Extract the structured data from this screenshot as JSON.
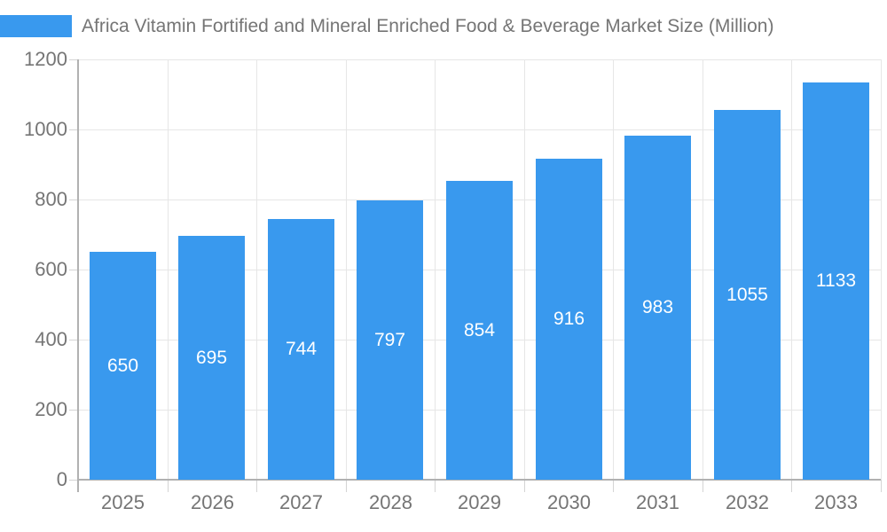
{
  "legend": {
    "series_label": "Africa Vitamin Fortified and Mineral Enriched Food & Beverage Market Size (Million)",
    "swatch_color": "#3999EE"
  },
  "chart_data": {
    "type": "bar",
    "title": "Africa Vitamin Fortified and Mineral Enriched Food & Beverage Market Size (Million)",
    "categories": [
      "2025",
      "2026",
      "2027",
      "2028",
      "2029",
      "2030",
      "2031",
      "2032",
      "2033"
    ],
    "values": [
      650,
      695,
      744,
      797,
      854,
      916,
      983,
      1055,
      1133
    ],
    "xlabel": "",
    "ylabel": "",
    "ylim": [
      0,
      1200
    ],
    "yticks": [
      0,
      200,
      400,
      600,
      800,
      1000,
      1200
    ],
    "grid": true,
    "legend_position": "top-left",
    "value_labels": "centered-inside-bars",
    "colors": {
      "bar": "#3999EE",
      "value_label_text": "#ffffff",
      "axis_text": "#757575",
      "grid_line": "#e6e6e6",
      "axis_line": "#b1b1b1",
      "tick_line": "#d4d4d4"
    }
  }
}
